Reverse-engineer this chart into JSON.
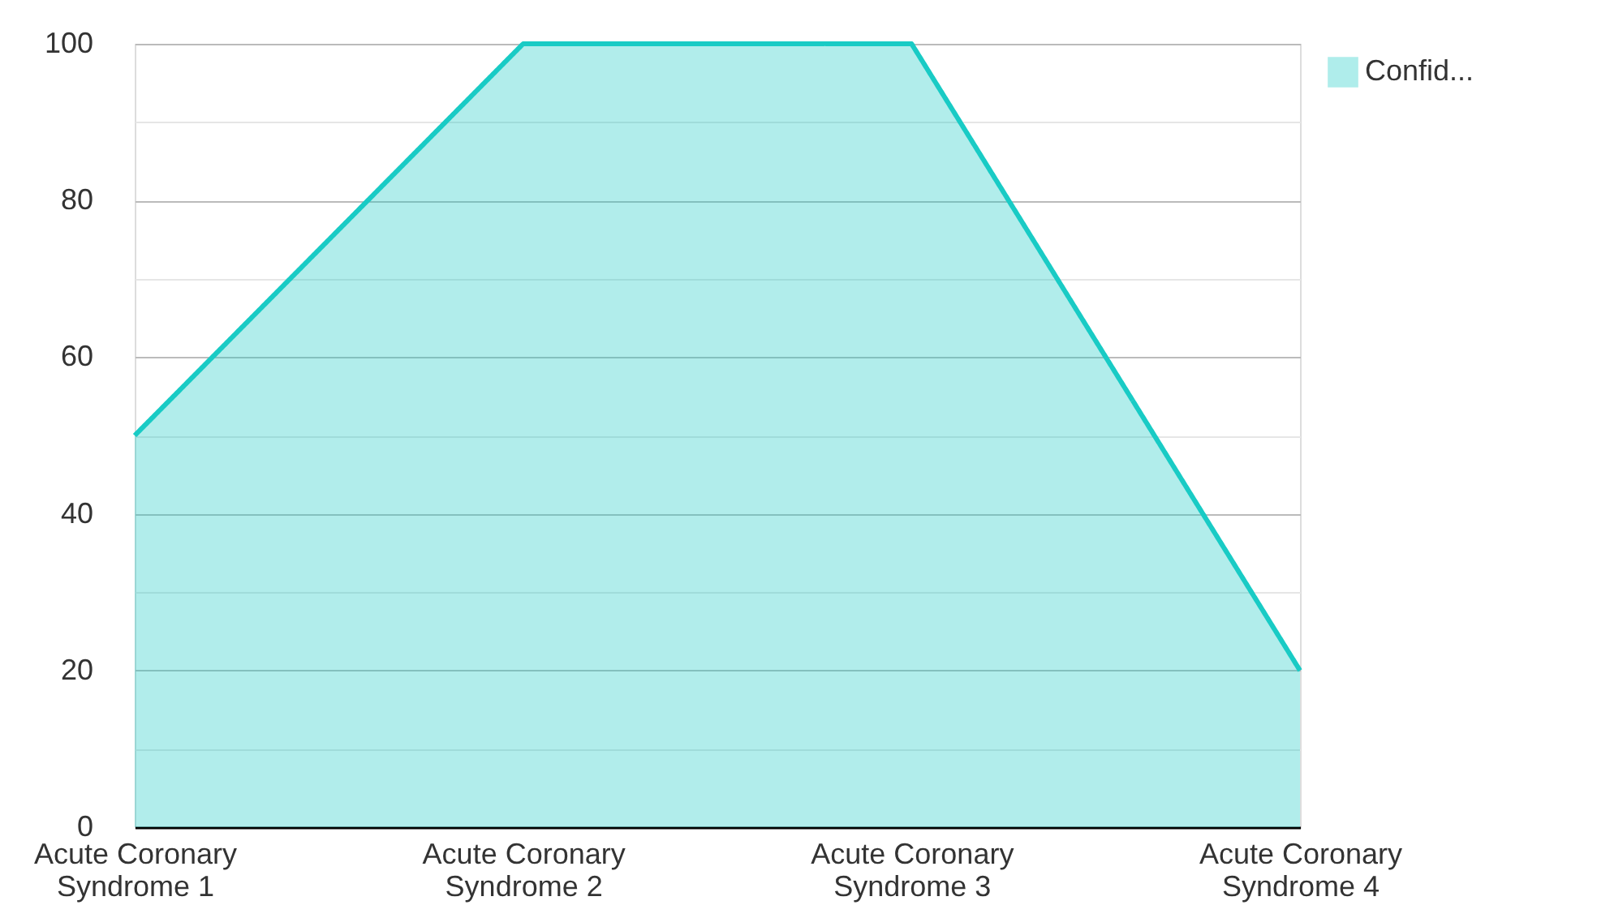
{
  "chart_data": {
    "type": "area",
    "categories": [
      "Acute Coronary Syndrome 1",
      "Acute Coronary Syndrome 2",
      "Acute Coronary Syndrome 3",
      "Acute Coronary Syndrome 4"
    ],
    "series": [
      {
        "name": "Confid...",
        "color": "#19cbc5",
        "values": [
          50,
          100,
          100,
          20
        ]
      }
    ],
    "ylim": [
      0,
      100
    ],
    "yticks": [
      0,
      {
        "value": 10,
        "label": null
      },
      20,
      {
        "value": 30,
        "label": null
      },
      40,
      {
        "value": 50,
        "label": null
      },
      60,
      {
        "value": 70,
        "label": null
      },
      80,
      {
        "value": 90,
        "label": null
      },
      100
    ],
    "grid": "y",
    "legend": "top right",
    "marker": "none",
    "line_style": "solid"
  }
}
